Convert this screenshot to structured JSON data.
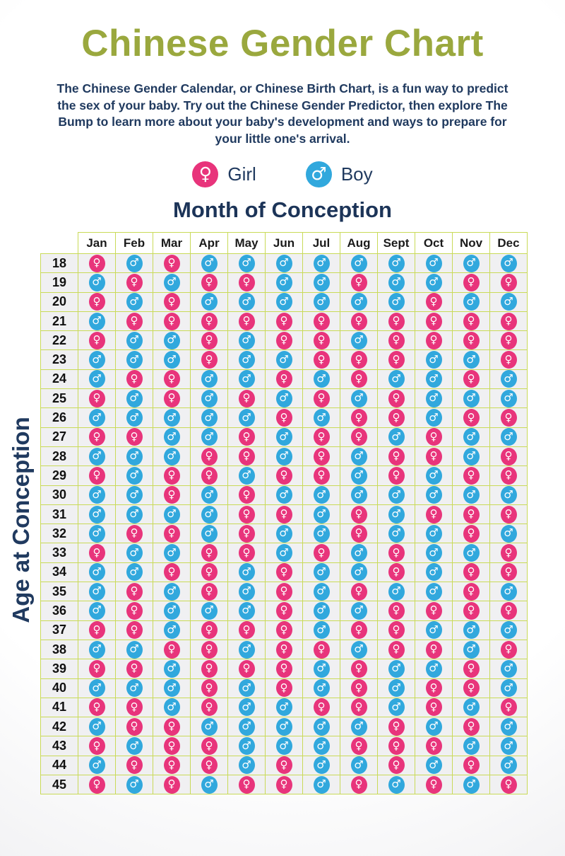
{
  "page": {
    "title": "Chinese Gender Chart",
    "description": "The Chinese Gender Calendar, or Chinese Birth Chart, is a fun way to predict the sex of your baby. Try out the Chinese Gender Predictor, then explore The Bump to learn more about your baby's development and ways to prepare for your little one's arrival."
  },
  "legend": {
    "girl_label": "Girl",
    "boy_label": "Boy",
    "girl_symbol": "♀",
    "boy_symbol": "♂"
  },
  "table_heading": "Month of Conception",
  "axis_label": "Age at Conception",
  "colors": {
    "girl": "#e8347b",
    "boy": "#31a8dd",
    "title": "#9aa83e",
    "navy": "#203a5f",
    "grid_border": "#c9da58",
    "cell_bg": "#f0f0f2"
  },
  "chart_data": {
    "type": "table",
    "value_legend": {
      "G": "Girl",
      "B": "Boy"
    },
    "columns": [
      "Jan",
      "Feb",
      "Mar",
      "Apr",
      "May",
      "Jun",
      "Jul",
      "Aug",
      "Sept",
      "Oct",
      "Nov",
      "Dec"
    ],
    "rows": [
      {
        "age": 18,
        "values": "GBGBBBBBBBBB"
      },
      {
        "age": 19,
        "values": "BGBGGBBGBBGG"
      },
      {
        "age": 20,
        "values": "GBGBBBBBBGBB"
      },
      {
        "age": 21,
        "values": "BGGGGGGGGGGG"
      },
      {
        "age": 22,
        "values": "GBBGBGGBGGGG"
      },
      {
        "age": 23,
        "values": "BBBGBBGGGBBG"
      },
      {
        "age": 24,
        "values": "BGGBBGBGBBGB"
      },
      {
        "age": 25,
        "values": "GBGBGBGBGBBB"
      },
      {
        "age": 26,
        "values": "BBBBBGBGGBGG"
      },
      {
        "age": 27,
        "values": "GGBBGBGGBGBB"
      },
      {
        "age": 28,
        "values": "BBBGGBGBGGBG"
      },
      {
        "age": 29,
        "values": "GBGGBGGBGBGG"
      },
      {
        "age": 30,
        "values": "BBGBGBBBBBBB"
      },
      {
        "age": 31,
        "values": "BBBBGGBGBGGG"
      },
      {
        "age": 32,
        "values": "BGGBGBBGBBGB"
      },
      {
        "age": 33,
        "values": "GBBGGBGBGBBG"
      },
      {
        "age": 34,
        "values": "BBGGBGBBGBGG"
      },
      {
        "age": 35,
        "values": "BGBGBGBGBBGB"
      },
      {
        "age": 36,
        "values": "BGBBBGBBGGGG"
      },
      {
        "age": 37,
        "values": "GGBGGGBGGBBB"
      },
      {
        "age": 38,
        "values": "BBGGBGGBGGBG"
      },
      {
        "age": 39,
        "values": "GGBGGGBGBBGB"
      },
      {
        "age": 40,
        "values": "BBBGBGBGBGGB"
      },
      {
        "age": 41,
        "values": "GGBGBBGGBGBG"
      },
      {
        "age": 42,
        "values": "BGGBBBBBGBGB"
      },
      {
        "age": 43,
        "values": "GBGGBBBGGGBB"
      },
      {
        "age": 44,
        "values": "BGGGBGBBGBGB"
      },
      {
        "age": 45,
        "values": "GBGBGGBGBGBG"
      }
    ]
  }
}
